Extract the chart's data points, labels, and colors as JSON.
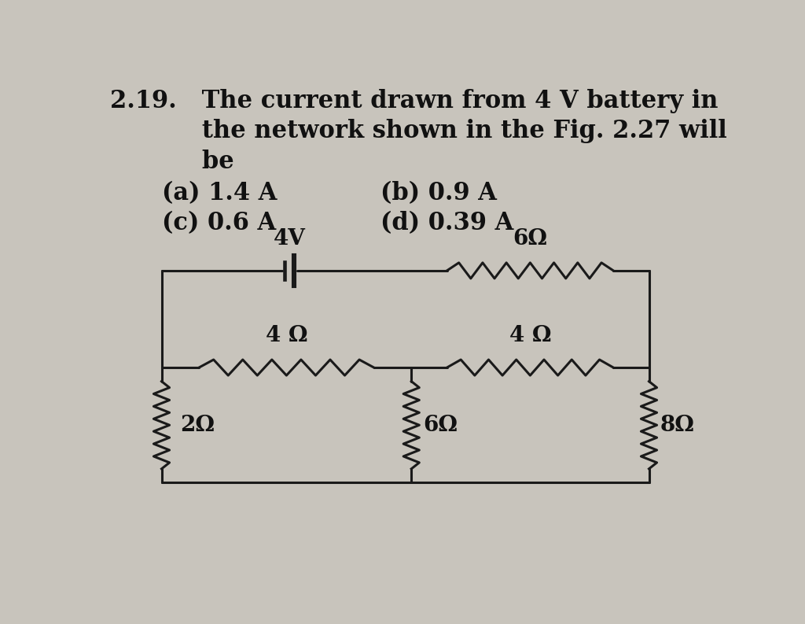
{
  "bg_color": "#c8c4bc",
  "text_color": "#111111",
  "line1": "2.19.   The current drawn from 4 V battery in",
  "line2": "           the network shown in the Fig. 2.27 will",
  "line3": "           be",
  "opt_a": "(a) 1.4 A",
  "opt_b": "(b) 0.9 A",
  "opt_c": "(c) 0.6 A",
  "opt_d": "(d) 0.39 A",
  "lab_battery": "4V",
  "lab_6ohm_top": "6Ω",
  "lab_4ohm_left": "4 Ω",
  "lab_4ohm_right": "4 Ω",
  "lab_2ohm": "2Ω",
  "lab_6ohm_mid": "6Ω",
  "lab_8ohm": "8Ω",
  "lc": "#1a1a1a",
  "lw": 2.2
}
